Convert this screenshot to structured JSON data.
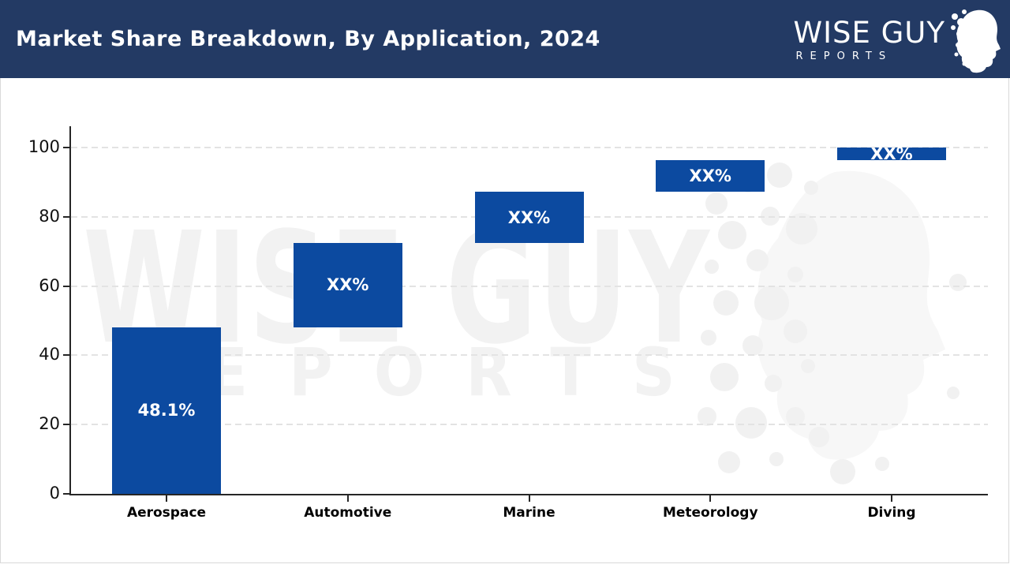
{
  "header": {
    "title": "Market Share Breakdown, By Application, 2024",
    "bg_color": "#233a64",
    "logo": {
      "line1": "WISE GUY",
      "line2": "REPORTS"
    }
  },
  "watermark": {
    "line1": "WISE GUY",
    "line2": "REPORTS"
  },
  "chart_data": {
    "type": "bar",
    "subtype": "waterfall-cumulative",
    "title": "Market Share Breakdown, By Application, 2024",
    "categories": [
      "Aerospace",
      "Automotive",
      "Marine",
      "Meteorology",
      "Diving"
    ],
    "segments": [
      {
        "category": "Aerospace",
        "start": 0,
        "end": 48.1,
        "value": 48.1,
        "label": "48.1%"
      },
      {
        "category": "Automotive",
        "start": 48.1,
        "end": 72.4,
        "value": 24.3,
        "label": "XX%"
      },
      {
        "category": "Marine",
        "start": 72.4,
        "end": 87.2,
        "value": 14.8,
        "label": "XX%"
      },
      {
        "category": "Meteorology",
        "start": 87.2,
        "end": 96.3,
        "value": 9.1,
        "label": "XX%"
      },
      {
        "category": "Diving",
        "start": 96.3,
        "end": 100,
        "value": 3.7,
        "label": "XX%"
      }
    ],
    "yticks": [
      0,
      20,
      40,
      60,
      80,
      100
    ],
    "ylim": [
      0,
      105
    ],
    "xlabel": "",
    "ylabel": "",
    "grid": "horizontal-dashed",
    "legend": "none",
    "bar_color": "#0c4aa0",
    "bar_label_color": "#ffffff",
    "axis_color": "#262626",
    "gridline_color": "#e3e3e3"
  }
}
